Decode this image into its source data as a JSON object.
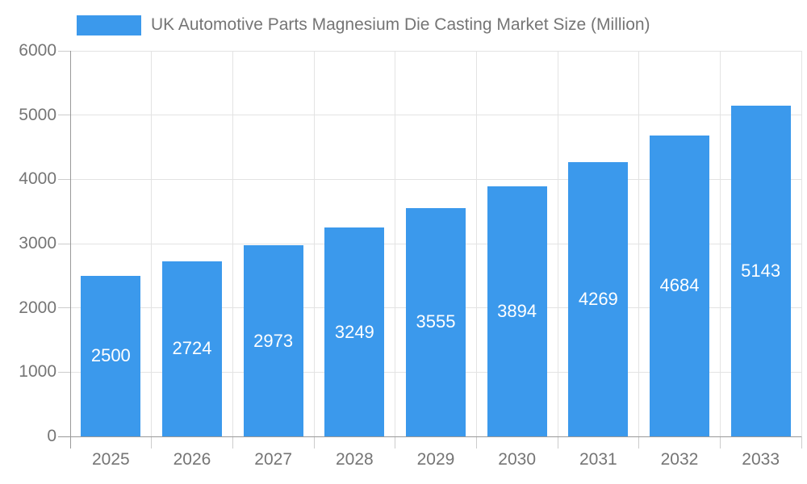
{
  "chart_data": {
    "type": "bar",
    "title": "UK Automotive Parts Magnesium Die Casting Market Size (Million)",
    "categories": [
      "2025",
      "2026",
      "2027",
      "2028",
      "2029",
      "2030",
      "2031",
      "2032",
      "2033"
    ],
    "values": [
      2500,
      2724,
      2973,
      3249,
      3555,
      3894,
      4269,
      4684,
      5143
    ],
    "xlabel": "",
    "ylabel": "",
    "ylim": [
      0,
      6000
    ],
    "ytick_step": 1000,
    "ytick_labels": [
      "0",
      "1000",
      "2000",
      "3000",
      "4000",
      "5000",
      "6000"
    ],
    "grid": "both",
    "legend_position": "top-left",
    "value_labels": "inside-center",
    "colors": {
      "bar": "#3b99ec",
      "gridline": "#e3e3e3",
      "axis": "#999999",
      "tick": "#cccccc",
      "axis_text": "#757575",
      "value_text": "#ffffff"
    }
  }
}
